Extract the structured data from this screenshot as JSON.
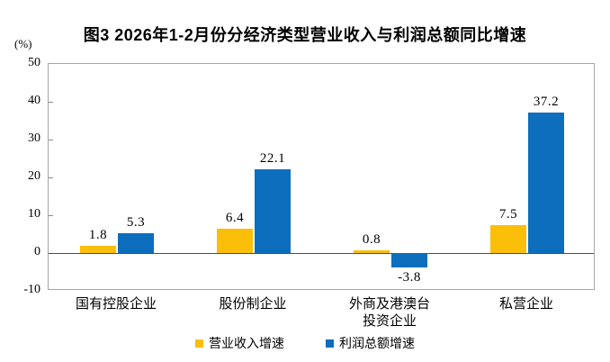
{
  "title": "图3 2026年1-2月份分经济类型营业收入与利润总额同比增速",
  "axis_unit": "(%)",
  "chart_data": {
    "type": "bar",
    "categories": [
      "国有控股企业",
      "股份制企业",
      "外商及港澳台\n投资企业",
      "私营企业"
    ],
    "series": [
      {
        "name": "营业收入增速",
        "color": "#FBBE09",
        "values": [
          1.8,
          6.4,
          0.8,
          7.5
        ]
      },
      {
        "name": "利润总额增速",
        "color": "#0C6EBC",
        "values": [
          5.3,
          22.1,
          -3.8,
          37.2
        ]
      }
    ],
    "ylim": [
      -10,
      50
    ],
    "ytick_interval": 10,
    "yticks": [
      50,
      40,
      30,
      20,
      10,
      0,
      -10
    ],
    "ylabel": "(%)",
    "xlabel": "",
    "grid": false,
    "value_labels": true,
    "legend_position": "bottom",
    "plot_border_color": "#a6a6a6",
    "zero_line_color": "#4d4d4d"
  }
}
